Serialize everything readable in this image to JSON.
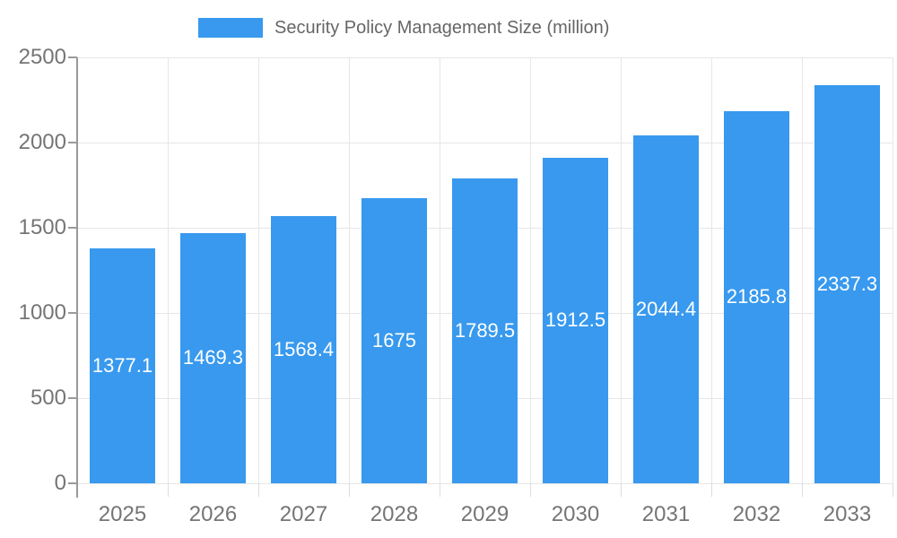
{
  "chart_data": {
    "type": "bar",
    "title": "Security Policy Management Size (million)",
    "categories": [
      "2025",
      "2026",
      "2027",
      "2028",
      "2029",
      "2030",
      "2031",
      "2032",
      "2033"
    ],
    "values": [
      1377.1,
      1469.3,
      1568.4,
      1675,
      1789.5,
      1912.5,
      2044.4,
      2185.8,
      2337.3
    ],
    "value_labels": [
      "1377.1",
      "1469.3",
      "1568.4",
      "1675",
      "1789.5",
      "1912.5",
      "2044.4",
      "2185.8",
      "2337.3"
    ],
    "xlabel": "",
    "ylabel": "",
    "ylim": [
      0,
      2500
    ],
    "yticks": [
      0,
      500,
      1000,
      1500,
      2000,
      2500
    ],
    "ytick_labels": [
      "0",
      "500",
      "1000",
      "1500",
      "2000",
      "2500"
    ],
    "grid": true,
    "legend_position": "top",
    "colors": {
      "bar": "#3899ee",
      "grid": "#e6e6e6",
      "axis": "#9a9a9a",
      "minor_tick": "#dddddd",
      "tick_text": "#757575",
      "legend_text": "#666666",
      "bar_label": "#ffffff",
      "background": "#ffffff"
    }
  }
}
